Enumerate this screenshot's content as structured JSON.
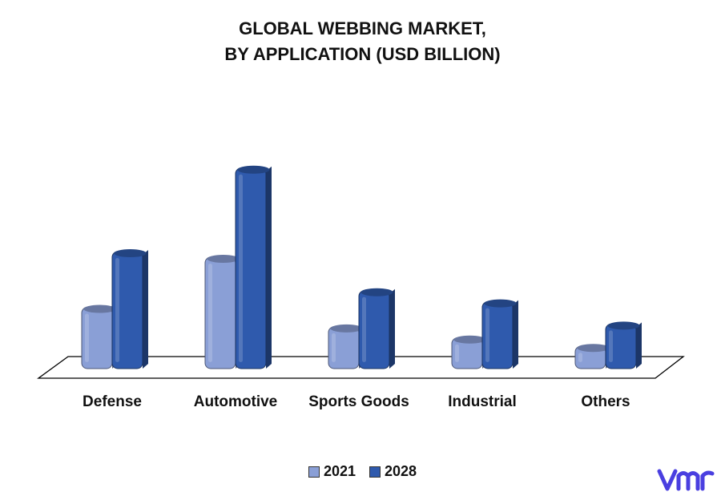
{
  "chart_data": {
    "type": "bar",
    "title_line1": "GLOBAL WEBBING MARKET,",
    "title_line2": "BY APPLICATION (USD BILLION)",
    "xlabel": "",
    "ylabel": "",
    "categories": [
      "Defense",
      "Automotive",
      "Sports Goods",
      "Industrial",
      "Others"
    ],
    "series": [
      {
        "name": "2021",
        "values": [
          2.2,
          4.0,
          1.5,
          1.1,
          0.8
        ],
        "color": "#8a9fd6"
      },
      {
        "name": "2028",
        "values": [
          4.2,
          7.2,
          2.8,
          2.4,
          1.6
        ],
        "color": "#2f5aad"
      }
    ],
    "ylim": [
      0,
      8
    ],
    "grid": false,
    "legend_placement": "bottom-center"
  },
  "logo": {
    "icon": "vmr-logo-icon",
    "text": "vmr",
    "color": "#4a3fe0"
  }
}
